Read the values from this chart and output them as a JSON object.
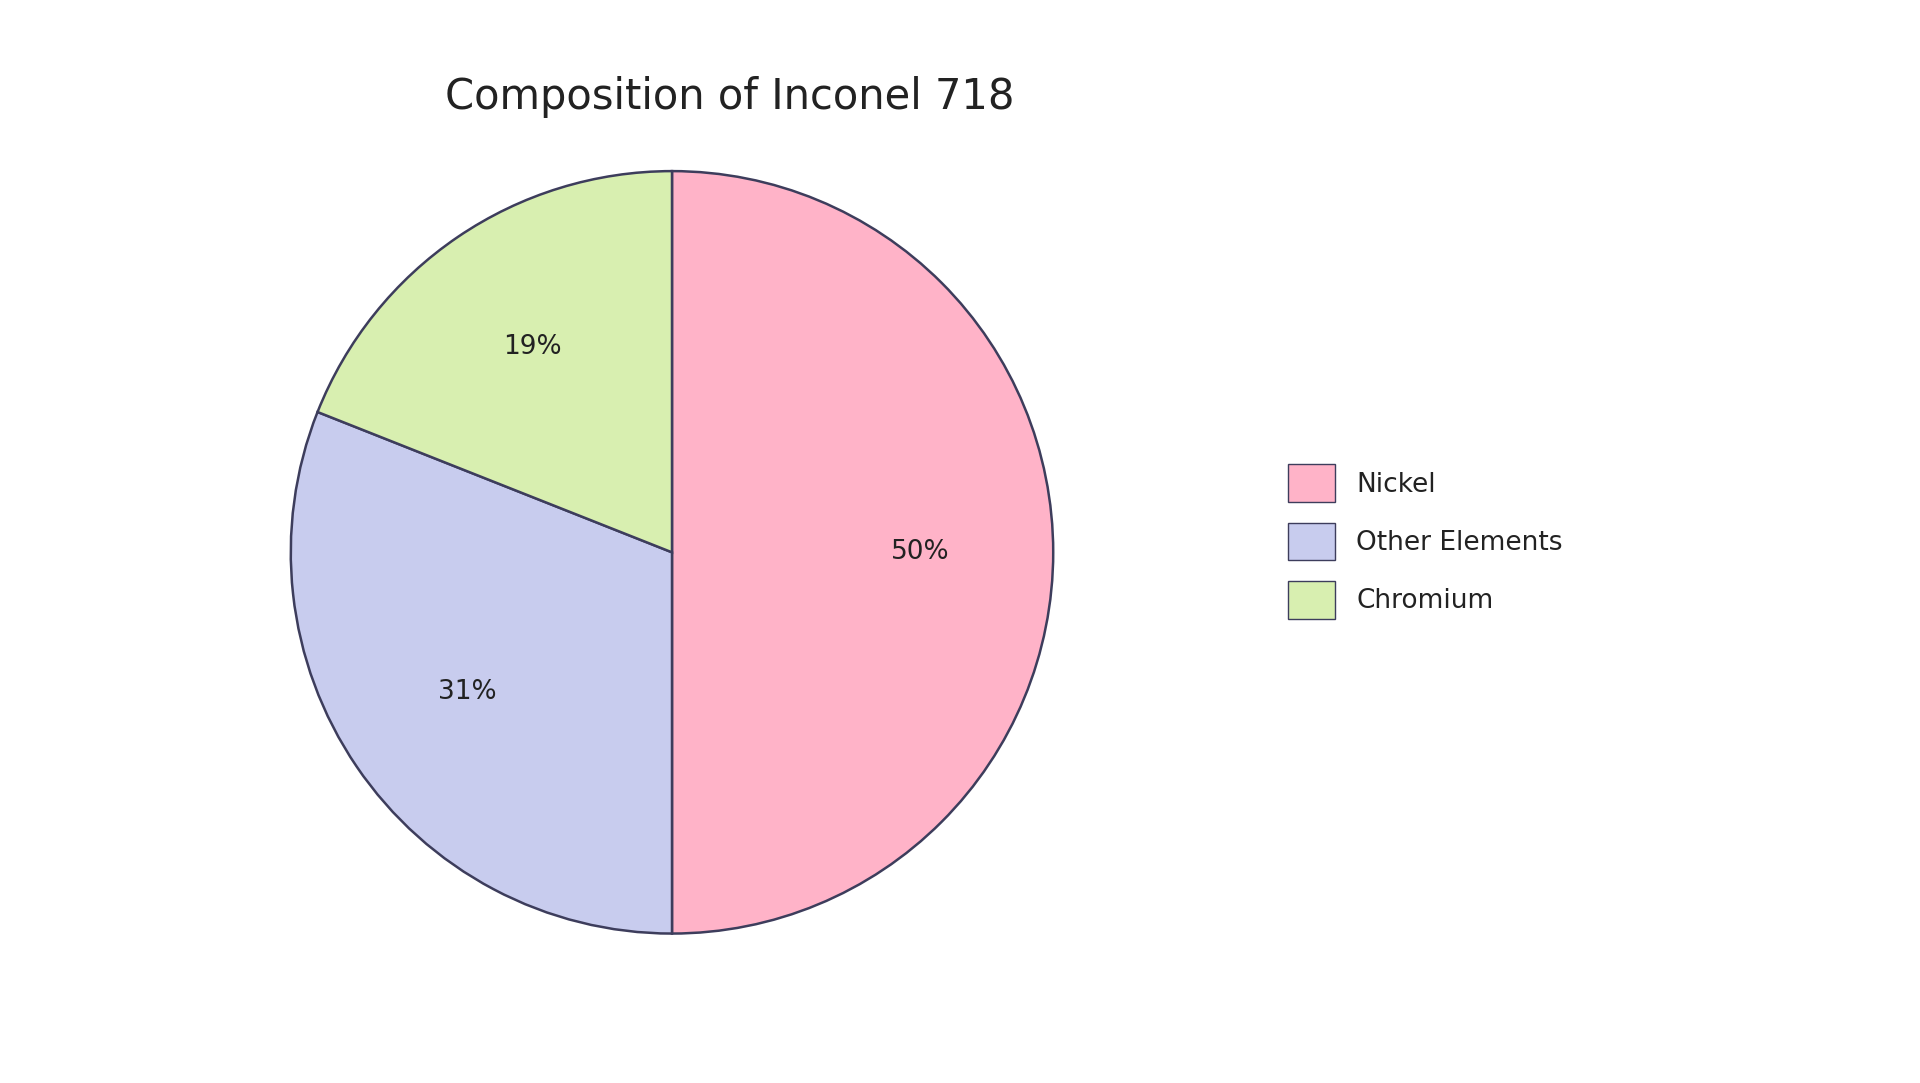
{
  "title": "Composition of Inconel 718",
  "slices": [
    50,
    31,
    19
  ],
  "labels": [
    "Nickel",
    "Other Elements",
    "Chromium"
  ],
  "colors": [
    "#FFB3C8",
    "#C8CCEE",
    "#D8EFB0"
  ],
  "edge_color": "#3D3D5C",
  "edge_width": 1.8,
  "autopct_values": [
    "50%",
    "31%",
    "19%"
  ],
  "startangle": 90,
  "background_color": "#FFFFFF",
  "title_fontsize": 30,
  "autopct_fontsize": 19,
  "legend_fontsize": 19,
  "text_color": "#222222"
}
